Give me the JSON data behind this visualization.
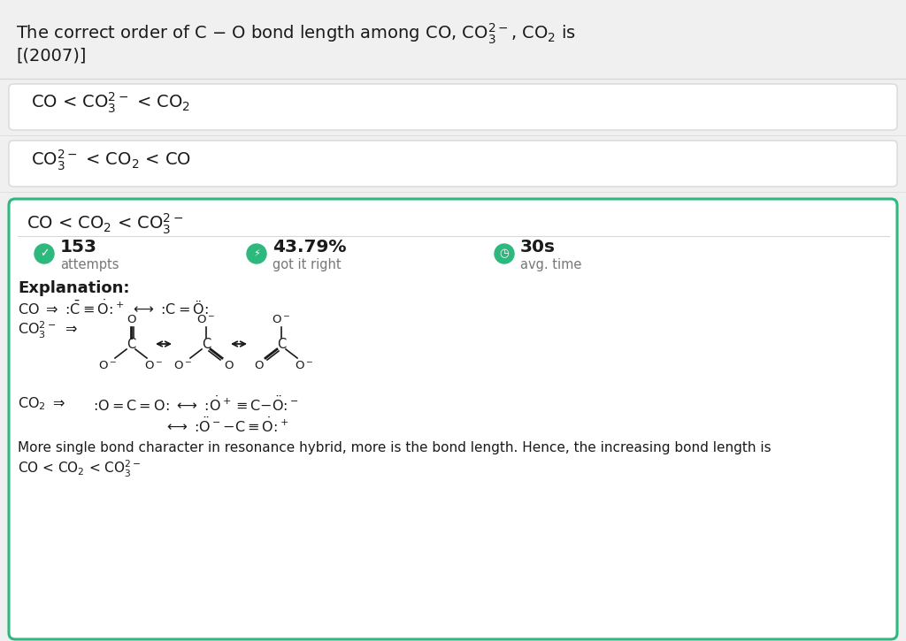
{
  "bg_color": "#f0f0f0",
  "white": "#ffffff",
  "box_bg": "#f8f8f8",
  "border_gray": "#d8d8d8",
  "border_green": "#2db87d",
  "text_dark": "#1a1a1a",
  "text_gray": "#777777",
  "green_color": "#2db87d",
  "title": "The correct order of C − O bond length among CO, CO$_3^{2-}$, CO$_2$ is",
  "year": "[(2007)]",
  "opt_a": "CO < CO$_3^{2-}$ < CO$_2$",
  "opt_b": "CO$_3^{2-}$ < CO$_2$ < CO",
  "correct": "CO < CO$_2$ < CO$_3^{2-}$",
  "stat1_val": "153",
  "stat1_lbl": "attempts",
  "stat2_val": "43.79%",
  "stat2_lbl": "got it right",
  "stat3_val": "30s",
  "stat3_lbl": "avg. time",
  "exp_label": "Explanation:",
  "conclusion": "More single bond character in resonance hybrid, more is the bond length. Hence, the increasing bond length is",
  "conclusion2": "CO < CO$_2$ < CO$_3^{2-}$"
}
